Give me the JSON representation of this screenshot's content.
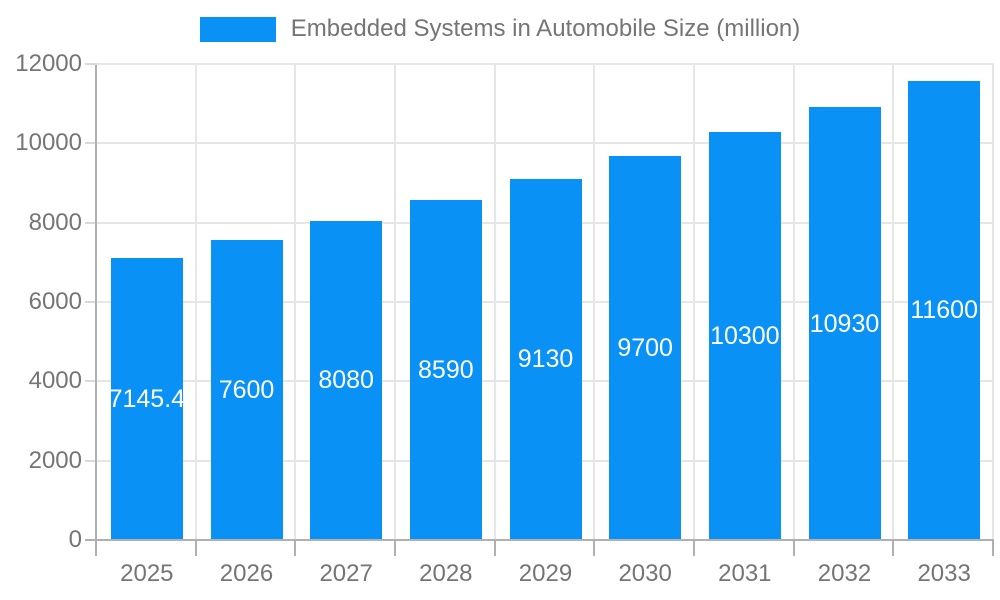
{
  "chart_data": {
    "type": "bar",
    "title": "Embedded Systems in Automobile Size (million)",
    "series_name": "Embedded Systems in Automobile Size (million)",
    "categories": [
      "2025",
      "2026",
      "2027",
      "2028",
      "2029",
      "2030",
      "2031",
      "2032",
      "2033"
    ],
    "values": [
      7145.4,
      7600,
      8080,
      8590,
      9130,
      9700,
      10300,
      10930,
      11600
    ],
    "value_labels": [
      "7145.4",
      "7600",
      "8080",
      "8590",
      "9130",
      "9700",
      "10300",
      "10930",
      "11600"
    ],
    "xlabel": "",
    "ylabel": "",
    "ylim": [
      0,
      12000
    ],
    "yticks": [
      0,
      2000,
      4000,
      6000,
      8000,
      10000,
      12000
    ],
    "ytick_labels": [
      "0",
      "2000",
      "4000",
      "6000",
      "8000",
      "10000",
      "12000"
    ],
    "grid": true,
    "legend_position": "top",
    "value_labels_inside_bars": true,
    "colors": {
      "bar": "#0991f5",
      "bar_value_text": "#ffffff",
      "axis_text": "#757575",
      "legend_text": "#757575",
      "gridline": "#e6e6e6",
      "axis_line": "#b0b0b0",
      "background": "#ffffff"
    }
  }
}
